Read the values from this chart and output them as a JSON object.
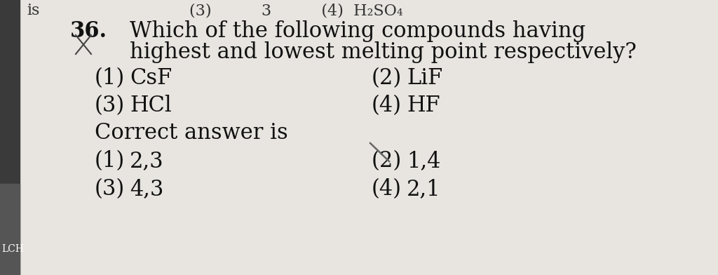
{
  "background_color": "#e8e5e0",
  "left_bar_color": "#3a3a3a",
  "top_text": "(3)          3          (4)  H₂SO₄",
  "top_left_text": "is",
  "q_num": "36.",
  "q_line1": "Which of the following compounds having",
  "q_line2": "highest and lowest melting point respectively?",
  "opt1_num": "(1)",
  "opt1_txt": "CsF",
  "opt2_num": "(2)",
  "opt2_txt": "LiF",
  "opt3_num": "(3)",
  "opt3_txt": "HCl",
  "opt4_num": "(4)",
  "opt4_txt": "HF",
  "correct_label": "Correct answer is",
  "ans1_num": "(1)",
  "ans1_txt": "2,3",
  "ans2_num": "(2)",
  "ans2_txt": "1,4",
  "ans3_num": "(3)",
  "ans3_txt": "4,3",
  "ans4_num": "(4)",
  "ans4_txt": "2,1",
  "left_bottom_label": "LCH",
  "font_size_main": 22,
  "font_size_top": 16
}
